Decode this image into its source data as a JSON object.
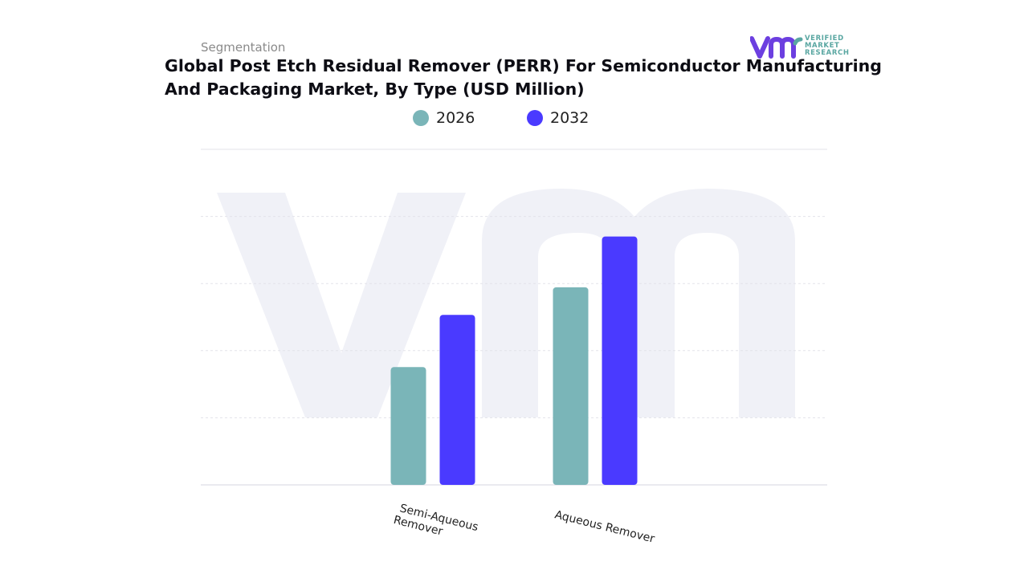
{
  "header": {
    "segment_label": "Segmentation",
    "title_line1": "Global Post Etch Residual Remover (PERR) For Semiconductor Manufacturing",
    "title_line2": "And Packaging Market, By Type (USD Million)"
  },
  "logo": {
    "brand_lines": [
      "VERIFIED",
      "MARKET",
      "RESEARCH"
    ],
    "color_primary": "#6c3fe0",
    "color_secondary": "#5aa7a2"
  },
  "colors": {
    "series_2026": "#7ab5b8",
    "series_2032": "#4a3aff",
    "grid": "#e3e3ea",
    "watermark": "#f0f1f7"
  },
  "chart_data": {
    "type": "bar",
    "title": "Global Post Etch Residual Remover (PERR) For Semiconductor Manufacturing And Packaging Market, By Type (USD Million)",
    "categories": [
      "Semi-Aqueous Remover",
      "Aqueous Remover"
    ],
    "series": [
      {
        "name": "2026",
        "values": [
          1.58,
          2.65
        ],
        "color": "#7ab5b8"
      },
      {
        "name": "2032",
        "values": [
          2.28,
          3.33
        ],
        "color": "#4a3aff"
      }
    ],
    "xlabel": "",
    "ylabel": "",
    "ylim": [
      0,
      4.5
    ],
    "grid": true,
    "legend": "top-center"
  }
}
